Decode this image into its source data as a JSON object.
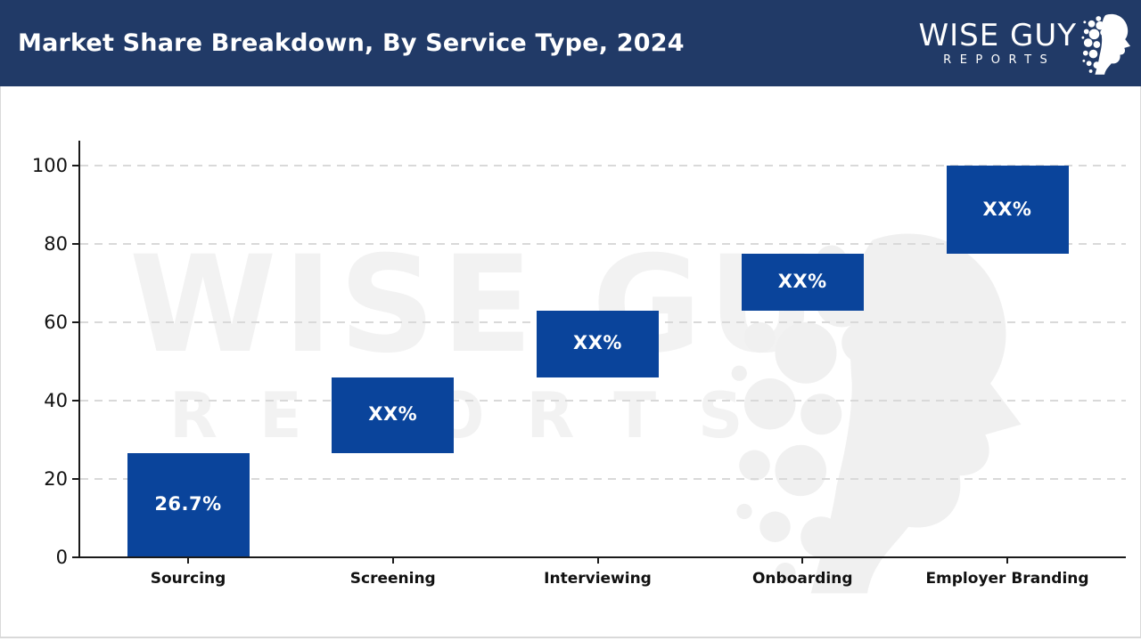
{
  "header": {
    "title": "Market Share Breakdown, By Service Type, 2024",
    "logo": {
      "name": "WISE GUY",
      "sub": "REPORTS",
      "icon": "dotted-head-profile-icon"
    }
  },
  "watermark": {
    "line1": "WISE GUY",
    "line2": "REPORTS",
    "icon": "dotted-head-profile-icon"
  },
  "colors": {
    "header_bg": "#213a67",
    "bar": "#0a449b",
    "grid": "#d9d9d9",
    "axis": "#1a1a1a",
    "bar_label_text": "#ffffff",
    "watermark": "#f2f2f2"
  },
  "chart_data": {
    "type": "bar",
    "subtype": "waterfall",
    "title": "Market Share Breakdown, By Service Type, 2024",
    "categories": [
      "Sourcing",
      "Screening",
      "Interviewing",
      "Onboarding",
      "Employer Branding"
    ],
    "segments": [
      {
        "category": "Sourcing",
        "start": 0,
        "end": 26.7,
        "label": "26.7%"
      },
      {
        "category": "Screening",
        "start": 26.7,
        "end": 45.9,
        "label": "XX%"
      },
      {
        "category": "Interviewing",
        "start": 45.9,
        "end": 63.0,
        "label": "XX%"
      },
      {
        "category": "Onboarding",
        "start": 63.0,
        "end": 77.5,
        "label": "XX%"
      },
      {
        "category": "Employer Branding",
        "start": 77.5,
        "end": 100,
        "label": "XX%"
      }
    ],
    "xlabel": "",
    "ylabel": "",
    "ylim": [
      0,
      100
    ],
    "yticks": [
      0,
      20,
      40,
      60,
      80,
      100
    ],
    "grid": "horizontal-dashed",
    "legend": "none",
    "bar_color": "#0a449b"
  }
}
